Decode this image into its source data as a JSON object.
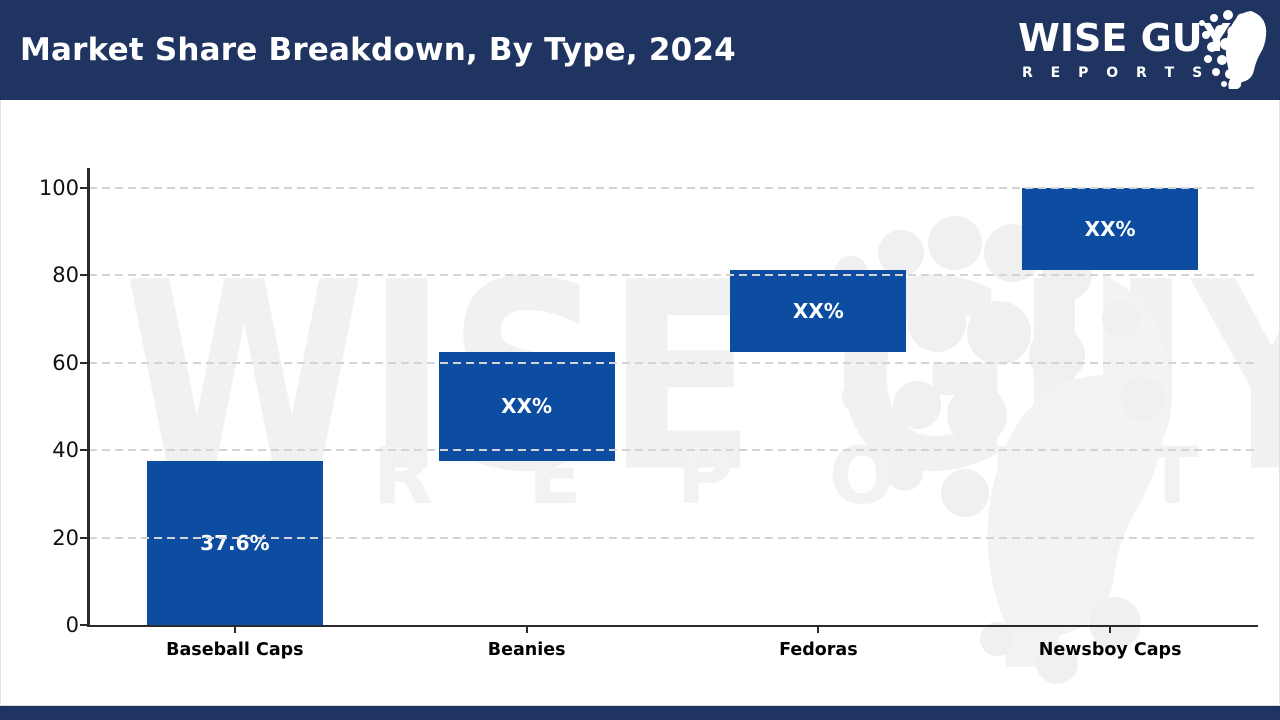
{
  "header": {
    "title": "Market Share Breakdown, By Type, 2024",
    "logo": {
      "line1": "WISE GUY",
      "line2": "R E P O R T S"
    }
  },
  "watermark": {
    "line1": "WISE GUY",
    "line2": "R E P O R T S"
  },
  "colors": {
    "header_bg": "#1f3461",
    "footer_bg": "#1f3461",
    "bar": "#0d4da1",
    "bar_label": "#ffffff",
    "axis": "#2a2a2a",
    "grid": "#d4d4d4",
    "watermark": "#f1f1f1"
  },
  "chart_data": {
    "type": "bar",
    "subtype": "waterfall",
    "title": "Market Share Breakdown, By Type, 2024",
    "xlabel": "",
    "ylabel": "",
    "categories": [
      "Baseball Caps",
      "Beanies",
      "Fedoras",
      "Newsboy Caps"
    ],
    "segments": [
      {
        "category": "Baseball Caps",
        "start": 0,
        "end": 37.6,
        "label": "37.6%"
      },
      {
        "category": "Beanies",
        "start": 37.6,
        "end": 62.3,
        "label": "XX%"
      },
      {
        "category": "Fedoras",
        "start": 62.3,
        "end": 81.2,
        "label": "XX%"
      },
      {
        "category": "Newsboy Caps",
        "start": 81.2,
        "end": 100,
        "label": "XX%"
      }
    ],
    "ylim": [
      0,
      105
    ],
    "yticks": [
      0,
      20,
      40,
      60,
      80,
      100
    ],
    "grid": "horizontal-dashed",
    "legend": "none"
  }
}
